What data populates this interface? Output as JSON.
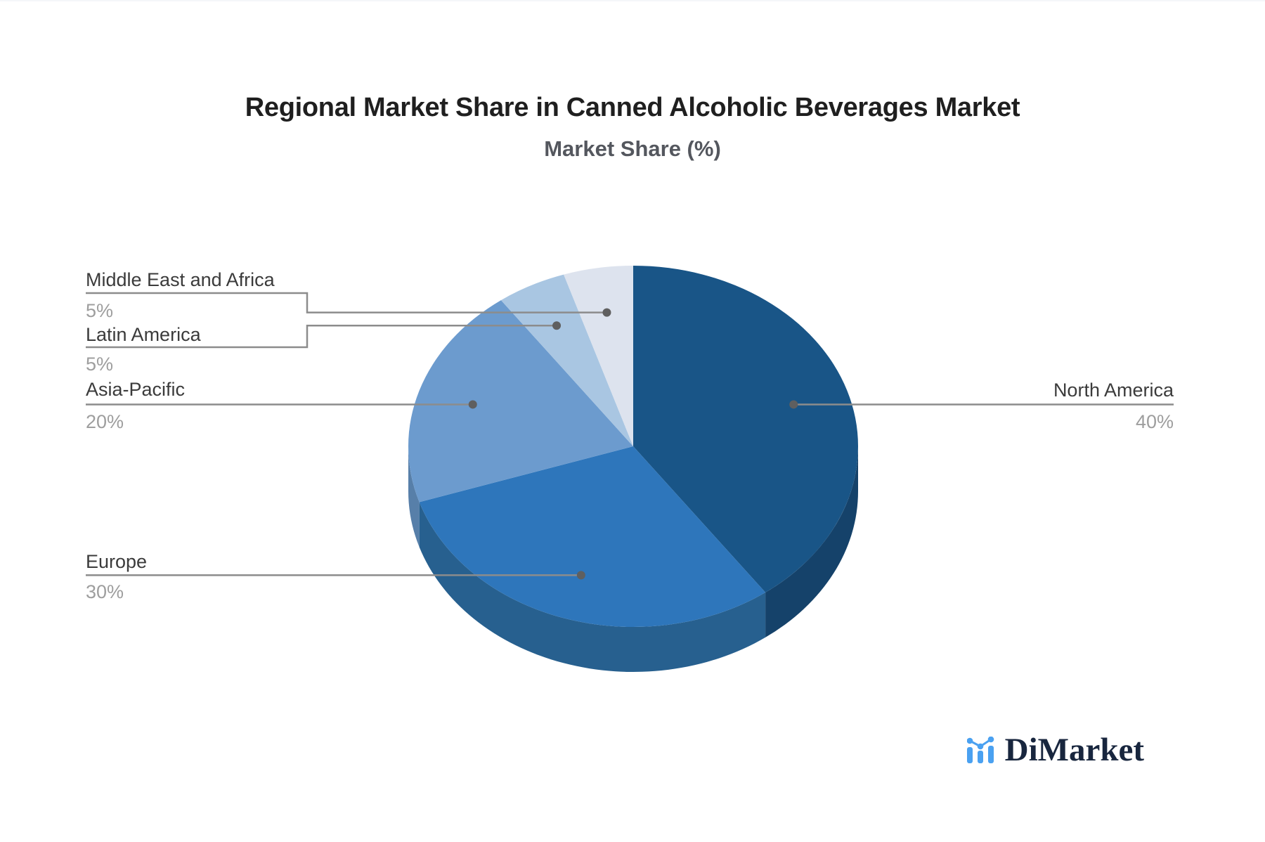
{
  "header": {
    "title": "Regional Market Share in Canned Alcoholic Beverages Market",
    "subtitle": "Market Share (%)"
  },
  "chart_data": {
    "type": "pie",
    "title": "Regional Market Share in Canned Alcoholic Beverages Market",
    "subtitle": "Market Share (%)",
    "unit": "%",
    "style": "pseudo-3d",
    "direction": "clockwise",
    "start_angle": "12-oclock",
    "legend_position": "none",
    "categories": [
      "North America",
      "Europe",
      "Asia-Pacific",
      "Latin America",
      "Middle East and Africa"
    ],
    "values": [
      40,
      30,
      20,
      5,
      5
    ],
    "slices": [
      {
        "label": "North America",
        "value": 40,
        "value_label": "40%",
        "color": "#195587",
        "side_color": "#15426a"
      },
      {
        "label": "Europe",
        "value": 30,
        "value_label": "30%",
        "color": "#2e76bb",
        "side_color": "#27608f"
      },
      {
        "label": "Asia-Pacific",
        "value": 20,
        "value_label": "20%",
        "color": "#6c9bce",
        "side_color": "#577fa9"
      },
      {
        "label": "Latin America",
        "value": 5,
        "value_label": "5%",
        "color": "#a9c6e2",
        "side_color": "#8aa8c6"
      },
      {
        "label": "Middle East and Africa",
        "value": 5,
        "value_label": "5%",
        "color": "#dde3ee",
        "side_color": "#b9c3d4"
      }
    ],
    "colors": {
      "leader_line": "#8c8c8c",
      "leader_dot": "#5f5f5f",
      "label_text": "#3b3b3b",
      "value_text": "#9e9e9e"
    }
  },
  "logo": {
    "name": "DiMarket",
    "icon": "bar-line-chart-icon",
    "icon_color": "#4aa1f1",
    "text_color": "#18263e"
  }
}
